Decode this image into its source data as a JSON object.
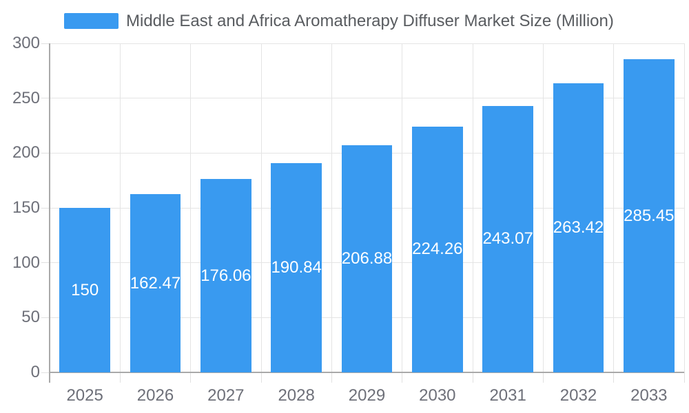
{
  "legend": {
    "label": "Middle East and Africa Aromatherapy Diffuser Market Size (Million)"
  },
  "colors": {
    "bar": "#399AF0",
    "axis_line": "#A9A9A9",
    "grid_line": "#E4E4E4",
    "tick_line": "#E0E0E0",
    "axis_text": "#6E7079",
    "legend_text": "#595C60",
    "value_text": "#FFFFFF",
    "background": "#FFFFFF"
  },
  "chart_data": {
    "type": "bar",
    "title": "Middle East and Africa Aromatherapy Diffuser Market Size (Million)",
    "categories": [
      "2025",
      "2026",
      "2027",
      "2028",
      "2029",
      "2030",
      "2031",
      "2032",
      "2033"
    ],
    "values": [
      150,
      162.47,
      176.06,
      190.84,
      206.88,
      224.26,
      243.07,
      263.42,
      285.45
    ],
    "value_labels": [
      "150",
      "162.47",
      "176.06",
      "190.84",
      "206.88",
      "224.26",
      "243.07",
      "263.42",
      "285.45"
    ],
    "series_name": "Middle East and Africa Aromatherapy Diffuser Market Size (Million)",
    "xlabel": "",
    "ylabel": "",
    "ylim": [
      0,
      300
    ],
    "yticks": [
      0,
      50,
      100,
      150,
      200,
      250,
      300
    ],
    "ytick_labels": [
      "0",
      "50",
      "100",
      "150",
      "200",
      "250",
      "300"
    ],
    "grid": true,
    "legend_position": "top",
    "value_label_position": "center"
  }
}
